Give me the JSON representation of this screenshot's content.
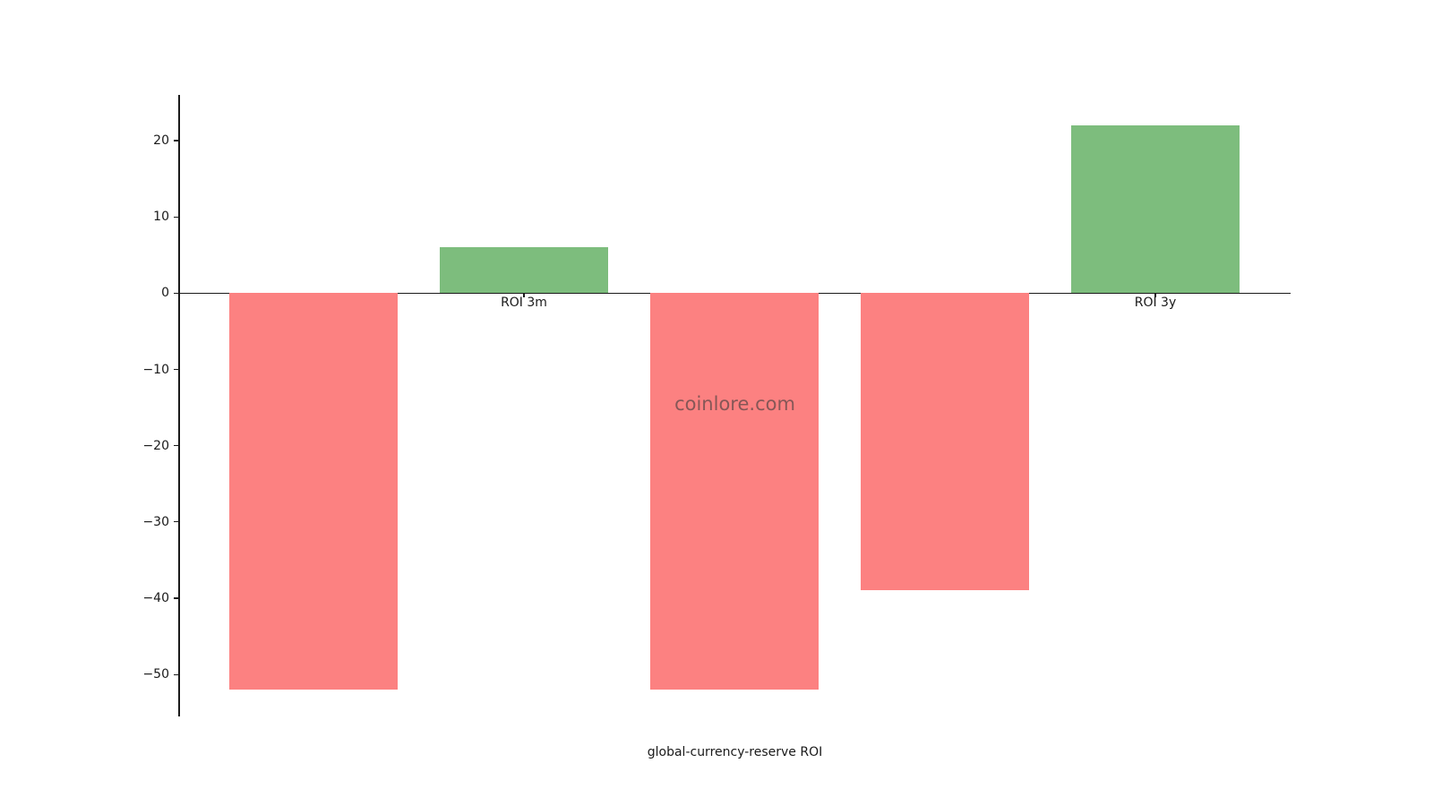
{
  "page": {
    "background": "#ffffff"
  },
  "chart_data": {
    "type": "bar",
    "categories": [
      "",
      "ROI 3m",
      "",
      "",
      "ROI 3y"
    ],
    "values": [
      -52,
      6,
      -52,
      -39,
      22
    ],
    "title": "global-currency-reserve ROI",
    "watermark": "coinlore.com",
    "xlabel": "",
    "ylabel": "",
    "ylim": [
      -55.5,
      26
    ],
    "yticks": [
      {
        "value": 20,
        "label": "20"
      },
      {
        "value": 10,
        "label": "10"
      },
      {
        "value": 0,
        "label": "0"
      },
      {
        "value": -10,
        "label": "−10"
      },
      {
        "value": -20,
        "label": "−20"
      },
      {
        "value": -30,
        "label": "−30"
      },
      {
        "value": -40,
        "label": "−40"
      },
      {
        "value": -50,
        "label": "−50"
      }
    ],
    "grid": false,
    "legend": null,
    "colors": {
      "positive_bar": "#7dbd7d",
      "negative_bar": "#fc8181",
      "axis": "#1a1a1a",
      "text": "#1a1a1a"
    }
  }
}
